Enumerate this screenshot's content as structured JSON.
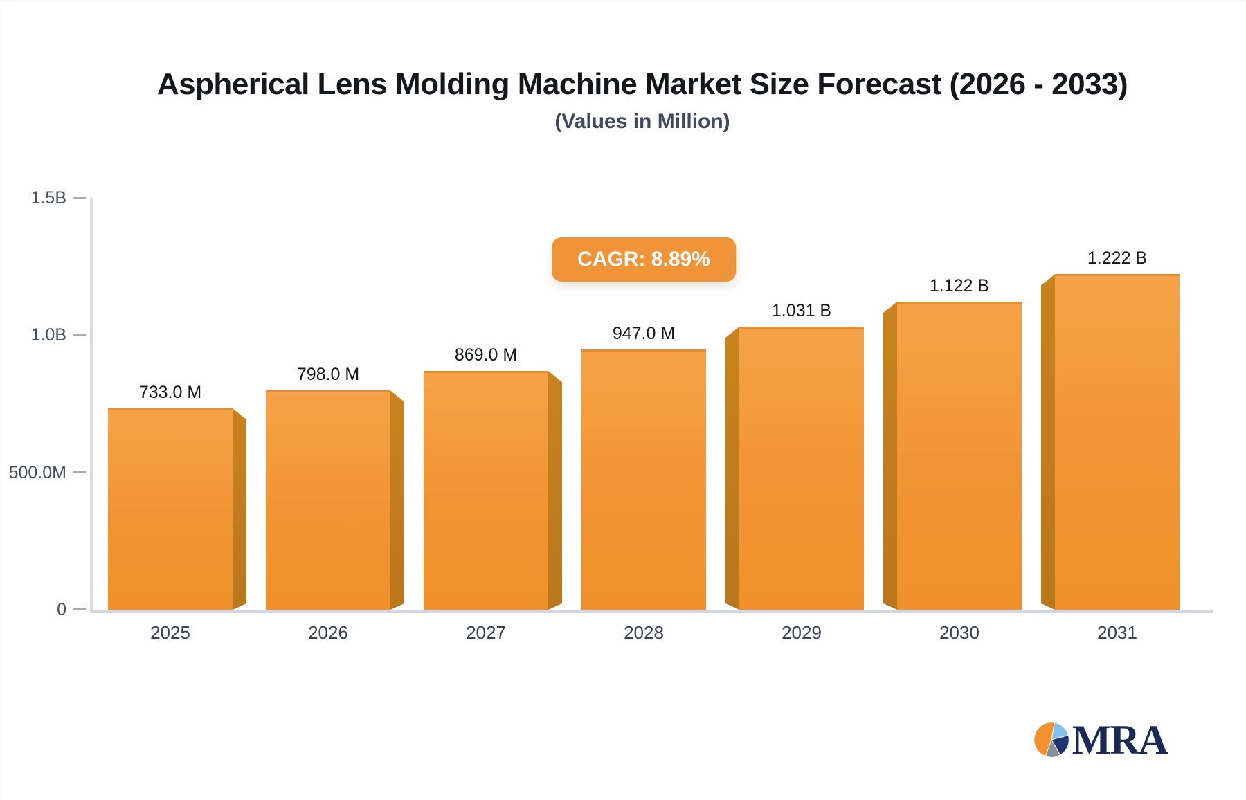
{
  "header": {
    "title": "Aspherical Lens Molding Machine Market Size Forecast (2026 - 2033)",
    "subtitle": "(Values in Million)"
  },
  "badge": {
    "label": "CAGR: 8.89%",
    "color": "#f0943a",
    "text_color": "#ffffff"
  },
  "logo": {
    "text": "MRA",
    "pie_colors": {
      "orange": "#f0922f",
      "light_blue": "#85c2ea",
      "navy": "#23356f",
      "gray": "#8a8e99"
    },
    "text_color": "#1a2a55"
  },
  "colors": {
    "bar_face": "#f19433",
    "bar_face_top": "#f5a348",
    "bar_side": "#be7b1e",
    "axis": "#d3d6dc",
    "tick_label": "#445062",
    "year_label": "#36425a",
    "value_label": "#14161a"
  },
  "chart_data": {
    "type": "bar",
    "title": "Aspherical Lens Molding Machine Market Size Forecast (2026 - 2033)",
    "subtitle": "(Values in Million)",
    "categories": [
      "2025",
      "2026",
      "2027",
      "2028",
      "2029",
      "2030",
      "2031"
    ],
    "values": [
      733,
      798,
      869,
      947,
      1031,
      1122,
      1222
    ],
    "value_unit": "Million",
    "value_labels": [
      "733.0 M",
      "798.0 M",
      "869.0 M",
      "947.0 M",
      "1.031 B",
      "1.122 B",
      "1.222 B"
    ],
    "cagr_percent": 8.89,
    "ylim": [
      0,
      1500
    ],
    "yticks": [
      {
        "value": 0,
        "label": "0"
      },
      {
        "value": 500,
        "label": "500.0M"
      },
      {
        "value": 1000,
        "label": "1.0B"
      },
      {
        "value": 1500,
        "label": "1.5B"
      }
    ],
    "grid": false,
    "legend": false,
    "bar_style": "3d-bevel, bevel faces away from center column"
  }
}
